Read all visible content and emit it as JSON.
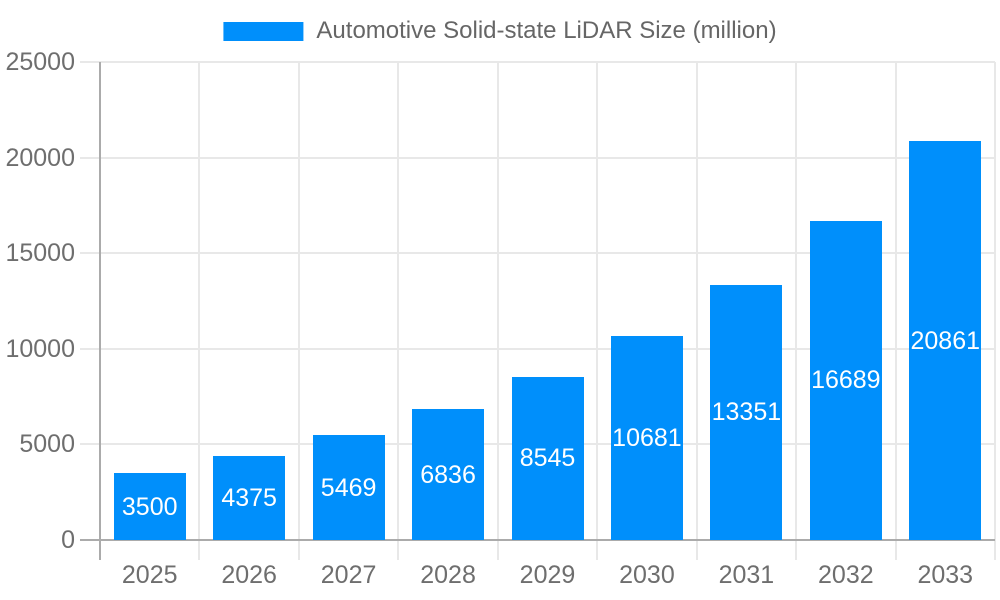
{
  "chart_data": {
    "type": "bar",
    "title": "Automotive Solid-state LiDAR Size (million)",
    "categories": [
      "2025",
      "2026",
      "2027",
      "2028",
      "2029",
      "2030",
      "2031",
      "2032",
      "2033"
    ],
    "values": [
      3500,
      4375,
      5469,
      6836,
      8545,
      10681,
      13351,
      16689,
      20861
    ],
    "xlabel": "",
    "ylabel": "",
    "ylim": [
      0,
      25000
    ],
    "y_ticks": [
      0,
      5000,
      10000,
      15000,
      20000,
      25000
    ],
    "grid": true,
    "legend_position": "top-center",
    "value_labels": "inside-center",
    "colors": {
      "bar": "#008FFB",
      "bar_value_label": "#FFFFFF",
      "grid_line": "#E8E8E8",
      "axis_line": "#ABABAB",
      "tick_label": "#6E6E6E",
      "legend_text": "#666666",
      "background": "#FFFFFF"
    }
  }
}
